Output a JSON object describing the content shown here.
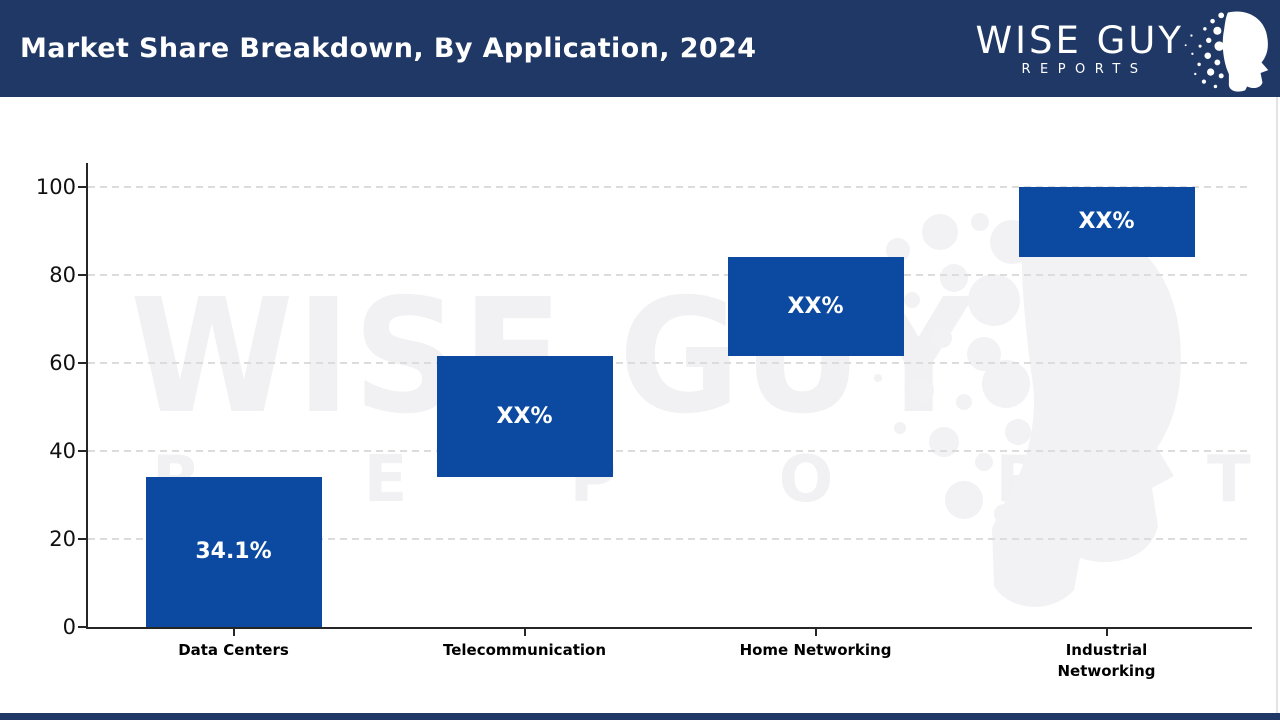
{
  "header": {
    "title": "Market Share Breakdown, By Application, 2024",
    "logo": {
      "name": "WISE GUY",
      "tagline": "REPORTS"
    }
  },
  "watermark": {
    "line1": "WISE GUY",
    "line2": "R E P O R T S"
  },
  "chart_data": {
    "type": "bar",
    "variant": "floating-segment-waterfall",
    "title": "Market Share Breakdown, By Application, 2024",
    "categories": [
      "Data Centers",
      "Telecommunication",
      "Home Networking",
      "Industrial\nNetworking"
    ],
    "segments": [
      {
        "category": "Data Centers",
        "start": 0,
        "end": 34.1,
        "label": "34.1%"
      },
      {
        "category": "Telecommunication",
        "start": 34.1,
        "end": 61.6,
        "label": "XX%"
      },
      {
        "category": "Home Networking",
        "start": 61.6,
        "end": 84.1,
        "label": "XX%"
      },
      {
        "category": "Industrial Networking",
        "start": 84.1,
        "end": 100,
        "label": "XX%"
      }
    ],
    "xlabel": "",
    "ylabel": "",
    "ylim": [
      0,
      100
    ],
    "yticks": [
      0,
      20,
      40,
      60,
      80,
      100
    ],
    "grid": "horizontal-dashed",
    "legend": "none",
    "bar_color": "#0b4aa0",
    "bar_label_color": "#ffffff"
  },
  "colors": {
    "header_bg": "#1f3865",
    "footer_bg": "#1f3865",
    "bar": "#0b4aa0",
    "axis": "#262626",
    "gridline": "#dcdcdc",
    "watermark": "#f1f1f4"
  }
}
